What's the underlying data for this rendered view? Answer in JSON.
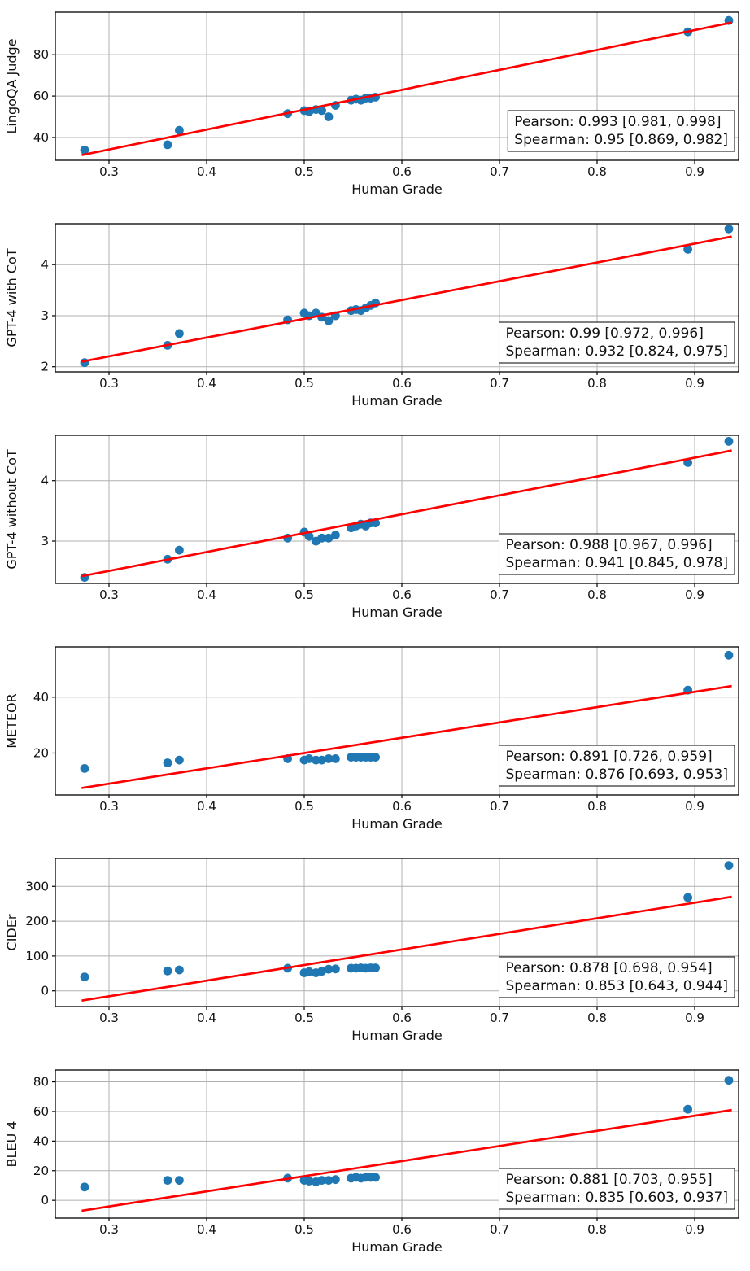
{
  "page": {
    "background": "#ffffff"
  },
  "colors": {
    "point": "#1f77b4",
    "fit_line": "#ff0000",
    "grid": "#b0b0b0",
    "spine": "#000000",
    "annotation_bg": "#ffffff",
    "annotation_border": "#000000"
  },
  "chart_data": [
    {
      "type": "scatter",
      "xlabel": "Human Grade",
      "ylabel": "LingoQA Judge",
      "xlim": [
        0.245,
        0.945
      ],
      "ylim": [
        29,
        100.5
      ],
      "xticks": [
        0.3,
        0.4,
        0.5,
        0.6,
        0.7,
        0.8,
        0.9
      ],
      "xtick_labels": [
        "0.3",
        "0.4",
        "0.5",
        "0.6",
        "0.7",
        "0.8",
        "0.9"
      ],
      "yticks": [
        40,
        60,
        80
      ],
      "ytick_labels": [
        "40",
        "60",
        "80"
      ],
      "grid": true,
      "point_color": "#1f77b4",
      "line_color": "#ff0000",
      "x": [
        0.275,
        0.36,
        0.372,
        0.483,
        0.5,
        0.505,
        0.512,
        0.518,
        0.525,
        0.532,
        0.548,
        0.553,
        0.558,
        0.563,
        0.568,
        0.573,
        0.893,
        0.935
      ],
      "y": [
        34,
        36.5,
        43.5,
        51.5,
        53,
        52.5,
        53.5,
        53,
        50,
        55.5,
        58,
        58.5,
        58,
        59,
        59,
        59.5,
        91,
        96.5
      ],
      "fit_line": {
        "x1": 0.272,
        "y1": 31.5,
        "x2": 0.938,
        "y2": 95.5
      },
      "annotation": {
        "line1": "Pearson: 0.993 [0.981, 0.998]",
        "line2": "Spearman: 0.95 [0.869, 0.982]"
      }
    },
    {
      "type": "scatter",
      "xlabel": "Human Grade",
      "ylabel": "GPT-4 with CoT",
      "xlim": [
        0.245,
        0.945
      ],
      "ylim": [
        1.9,
        4.8
      ],
      "xticks": [
        0.3,
        0.4,
        0.5,
        0.6,
        0.7,
        0.8,
        0.9
      ],
      "xtick_labels": [
        "0.3",
        "0.4",
        "0.5",
        "0.6",
        "0.7",
        "0.8",
        "0.9"
      ],
      "yticks": [
        2,
        3,
        4
      ],
      "ytick_labels": [
        "2",
        "3",
        "4"
      ],
      "grid": true,
      "point_color": "#1f77b4",
      "line_color": "#ff0000",
      "x": [
        0.275,
        0.36,
        0.372,
        0.483,
        0.5,
        0.505,
        0.512,
        0.518,
        0.525,
        0.532,
        0.548,
        0.553,
        0.558,
        0.563,
        0.568,
        0.573,
        0.893,
        0.935
      ],
      "y": [
        2.08,
        2.42,
        2.65,
        2.92,
        3.05,
        3.0,
        3.05,
        2.97,
        2.9,
        3.0,
        3.1,
        3.12,
        3.1,
        3.15,
        3.2,
        3.25,
        4.3,
        4.7
      ],
      "fit_line": {
        "x1": 0.272,
        "y1": 2.1,
        "x2": 0.938,
        "y2": 4.55
      },
      "annotation": {
        "line1": "Pearson: 0.99 [0.972, 0.996]",
        "line2": "Spearman: 0.932 [0.824, 0.975]"
      }
    },
    {
      "type": "scatter",
      "xlabel": "Human Grade",
      "ylabel": "GPT-4 without CoT",
      "xlim": [
        0.245,
        0.945
      ],
      "ylim": [
        2.3,
        4.75
      ],
      "xticks": [
        0.3,
        0.4,
        0.5,
        0.6,
        0.7,
        0.8,
        0.9
      ],
      "xtick_labels": [
        "0.3",
        "0.4",
        "0.5",
        "0.6",
        "0.7",
        "0.8",
        "0.9"
      ],
      "yticks": [
        3,
        4
      ],
      "ytick_labels": [
        "3",
        "4"
      ],
      "grid": true,
      "point_color": "#1f77b4",
      "line_color": "#ff0000",
      "x": [
        0.275,
        0.36,
        0.372,
        0.483,
        0.5,
        0.505,
        0.512,
        0.518,
        0.525,
        0.532,
        0.548,
        0.553,
        0.558,
        0.563,
        0.568,
        0.573,
        0.893,
        0.935
      ],
      "y": [
        2.4,
        2.7,
        2.85,
        3.05,
        3.15,
        3.08,
        3.0,
        3.05,
        3.05,
        3.1,
        3.22,
        3.25,
        3.28,
        3.25,
        3.3,
        3.3,
        4.3,
        4.65
      ],
      "fit_line": {
        "x1": 0.272,
        "y1": 2.42,
        "x2": 0.938,
        "y2": 4.5
      },
      "annotation": {
        "line1": "Pearson: 0.988 [0.967, 0.996]",
        "line2": "Spearman: 0.941 [0.845, 0.978]"
      }
    },
    {
      "type": "scatter",
      "xlabel": "Human Grade",
      "ylabel": "METEOR",
      "xlim": [
        0.245,
        0.945
      ],
      "ylim": [
        5,
        58
      ],
      "xticks": [
        0.3,
        0.4,
        0.5,
        0.6,
        0.7,
        0.8,
        0.9
      ],
      "xtick_labels": [
        "0.3",
        "0.4",
        "0.5",
        "0.6",
        "0.7",
        "0.8",
        "0.9"
      ],
      "yticks": [
        20,
        40
      ],
      "ytick_labels": [
        "20",
        "40"
      ],
      "grid": true,
      "point_color": "#1f77b4",
      "line_color": "#ff0000",
      "x": [
        0.275,
        0.36,
        0.372,
        0.483,
        0.5,
        0.505,
        0.512,
        0.518,
        0.525,
        0.532,
        0.548,
        0.553,
        0.558,
        0.563,
        0.568,
        0.573,
        0.893,
        0.935
      ],
      "y": [
        14.5,
        16.5,
        17.5,
        18,
        17.5,
        18,
        17.5,
        17.5,
        18,
        18,
        18.5,
        18.5,
        18.5,
        18.5,
        18.5,
        18.5,
        42.5,
        55
      ],
      "fit_line": {
        "x1": 0.272,
        "y1": 7.5,
        "x2": 0.938,
        "y2": 44
      },
      "annotation": {
        "line1": "Pearson: 0.891 [0.726, 0.959]",
        "line2": "Spearman: 0.876 [0.693, 0.953]"
      }
    },
    {
      "type": "scatter",
      "xlabel": "Human Grade",
      "ylabel": "CIDEr",
      "xlim": [
        0.245,
        0.945
      ],
      "ylim": [
        -45,
        380
      ],
      "xticks": [
        0.3,
        0.4,
        0.5,
        0.6,
        0.7,
        0.8,
        0.9
      ],
      "xtick_labels": [
        "0.3",
        "0.4",
        "0.5",
        "0.6",
        "0.7",
        "0.8",
        "0.9"
      ],
      "yticks": [
        0,
        100,
        200,
        300
      ],
      "ytick_labels": [
        "0",
        "100",
        "200",
        "300"
      ],
      "grid": true,
      "point_color": "#1f77b4",
      "line_color": "#ff0000",
      "x": [
        0.275,
        0.36,
        0.372,
        0.483,
        0.5,
        0.505,
        0.512,
        0.518,
        0.525,
        0.532,
        0.548,
        0.553,
        0.558,
        0.563,
        0.568,
        0.573,
        0.893,
        0.935
      ],
      "y": [
        40,
        57,
        60,
        65,
        52,
        55,
        52,
        56,
        62,
        63,
        65,
        65,
        66,
        65,
        66,
        66,
        268,
        360
      ],
      "fit_line": {
        "x1": 0.272,
        "y1": -28,
        "x2": 0.938,
        "y2": 270
      },
      "annotation": {
        "line1": "Pearson: 0.878 [0.698, 0.954]",
        "line2": "Spearman: 0.853 [0.643, 0.944]"
      }
    },
    {
      "type": "scatter",
      "xlabel": "Human Grade",
      "ylabel": "BLEU 4",
      "xlim": [
        0.245,
        0.945
      ],
      "ylim": [
        -12,
        88
      ],
      "xticks": [
        0.3,
        0.4,
        0.5,
        0.6,
        0.7,
        0.8,
        0.9
      ],
      "xtick_labels": [
        "0.3",
        "0.4",
        "0.5",
        "0.6",
        "0.7",
        "0.8",
        "0.9"
      ],
      "yticks": [
        0,
        20,
        40,
        60,
        80
      ],
      "ytick_labels": [
        "0",
        "20",
        "40",
        "60",
        "80"
      ],
      "grid": true,
      "point_color": "#1f77b4",
      "line_color": "#ff0000",
      "x": [
        0.275,
        0.36,
        0.372,
        0.483,
        0.5,
        0.505,
        0.512,
        0.518,
        0.525,
        0.532,
        0.548,
        0.553,
        0.558,
        0.563,
        0.568,
        0.573,
        0.893,
        0.935
      ],
      "y": [
        9,
        13.5,
        13.5,
        15,
        13.5,
        13,
        12.5,
        13.5,
        13.5,
        14,
        15,
        15.5,
        15,
        15.5,
        15.5,
        15.5,
        61.5,
        81
      ],
      "fit_line": {
        "x1": 0.272,
        "y1": -7,
        "x2": 0.938,
        "y2": 61
      },
      "annotation": {
        "line1": "Pearson: 0.881 [0.703, 0.955]",
        "line2": "Spearman: 0.835 [0.603, 0.937]"
      }
    }
  ]
}
